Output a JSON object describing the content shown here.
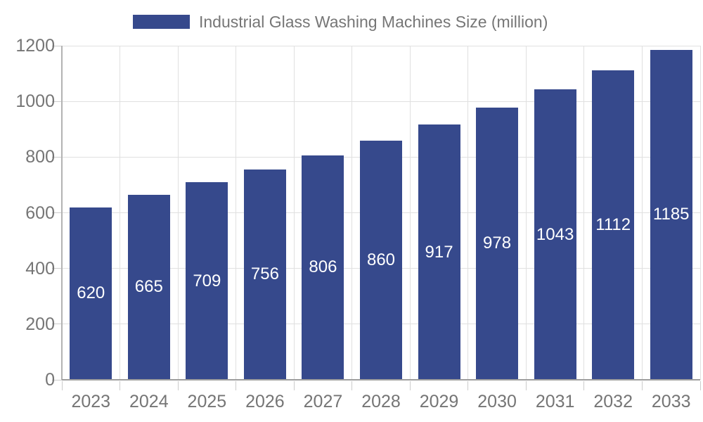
{
  "legend": {
    "label": "Industrial Glass Washing Machines Size (million)"
  },
  "chart_data": {
    "type": "bar",
    "title": "Industrial Glass Washing Machines Size (million)",
    "categories": [
      "2023",
      "2024",
      "2025",
      "2026",
      "2027",
      "2028",
      "2029",
      "2030",
      "2031",
      "2032",
      "2033"
    ],
    "values": [
      620,
      665,
      709,
      756,
      806,
      860,
      917,
      978,
      1043,
      1112,
      1185
    ],
    "xlabel": "",
    "ylabel": "",
    "ylim": [
      0,
      1200
    ],
    "ytick_step": 200,
    "yticks": [
      "0",
      "200",
      "400",
      "600",
      "800",
      "1000",
      "1200"
    ],
    "grid": true,
    "legend_position": "top",
    "data_labels": "inside-center",
    "colors": {
      "bar": "#36498c",
      "grid": "#e0e0e0",
      "y_axis": "#b3b3b3",
      "x_axis": "#9e9e9e",
      "tick": "#cccccc",
      "axis_text": "#757575",
      "legend_text": "#767676",
      "value_text": "#ffffff",
      "background": "#ffffff"
    }
  }
}
